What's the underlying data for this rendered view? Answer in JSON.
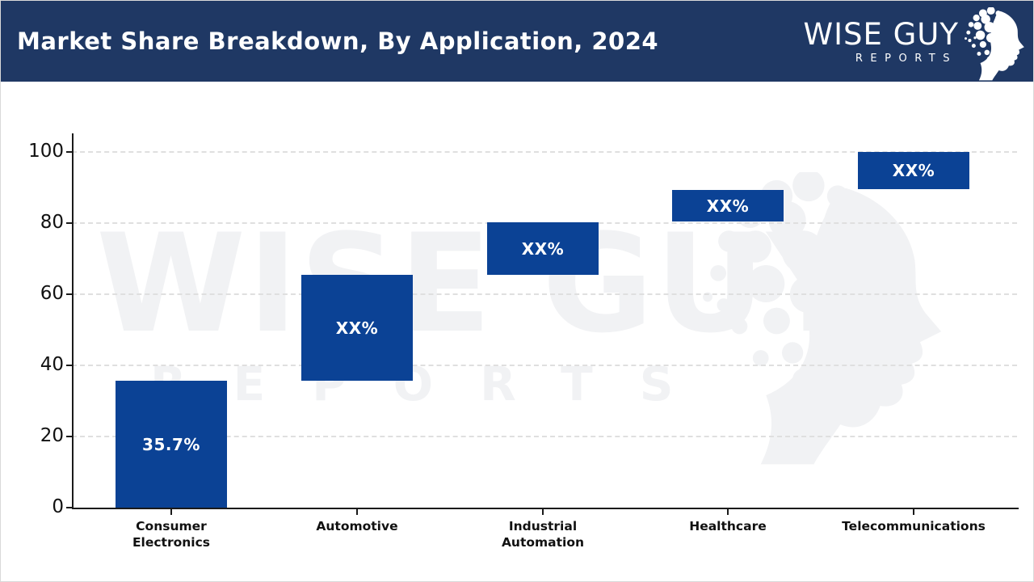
{
  "header": {
    "title": "Market Share Breakdown, By Application, 2024",
    "logo": {
      "line1": "WISE GUY",
      "line2": "REPORTS",
      "icon": "dotted-head-profile-icon"
    }
  },
  "watermark": {
    "line1": "WISE GUY",
    "line2": "REPORTS",
    "icon": "dotted-head-profile-icon"
  },
  "chart_data": {
    "type": "bar",
    "subtype": "waterfall",
    "title": "Market Share Breakdown, By Application, 2024",
    "categories": [
      "Consumer Electronics",
      "Automotive",
      "Industrial Automation",
      "Healthcare",
      "Telecommunications"
    ],
    "category_lines": [
      [
        "Consumer",
        "Electronics"
      ],
      [
        "Automotive"
      ],
      [
        "Industrial",
        "Automation"
      ],
      [
        "Healthcare"
      ],
      [
        "Telecommunications"
      ]
    ],
    "segments": [
      {
        "category": "Consumer Electronics",
        "from": 0,
        "to": 35.7,
        "label": "35.7%"
      },
      {
        "category": "Automotive",
        "from": 35.7,
        "to": 65.5,
        "label": "XX%"
      },
      {
        "category": "Industrial Automation",
        "from": 65.5,
        "to": 80.3,
        "label": "XX%"
      },
      {
        "category": "Healthcare",
        "from": 80.5,
        "to": 89.2,
        "label": "XX%"
      },
      {
        "category": "Telecommunications",
        "from": 89.5,
        "to": 100,
        "label": "XX%"
      }
    ],
    "ylim": [
      0,
      100
    ],
    "yticks": [
      0,
      20,
      40,
      60,
      80,
      100
    ],
    "xlabel": "",
    "ylabel": "",
    "grid": "horizontal-dashed",
    "legend": "none"
  },
  "colors": {
    "header_bg": "#1f3864",
    "bar": "#0b4295",
    "bar_label": "#ffffff",
    "axis": "#1a1a1a",
    "grid": "#dfdfdf",
    "watermark": "#f1f2f4",
    "frame_border": "#d9d9d9"
  }
}
